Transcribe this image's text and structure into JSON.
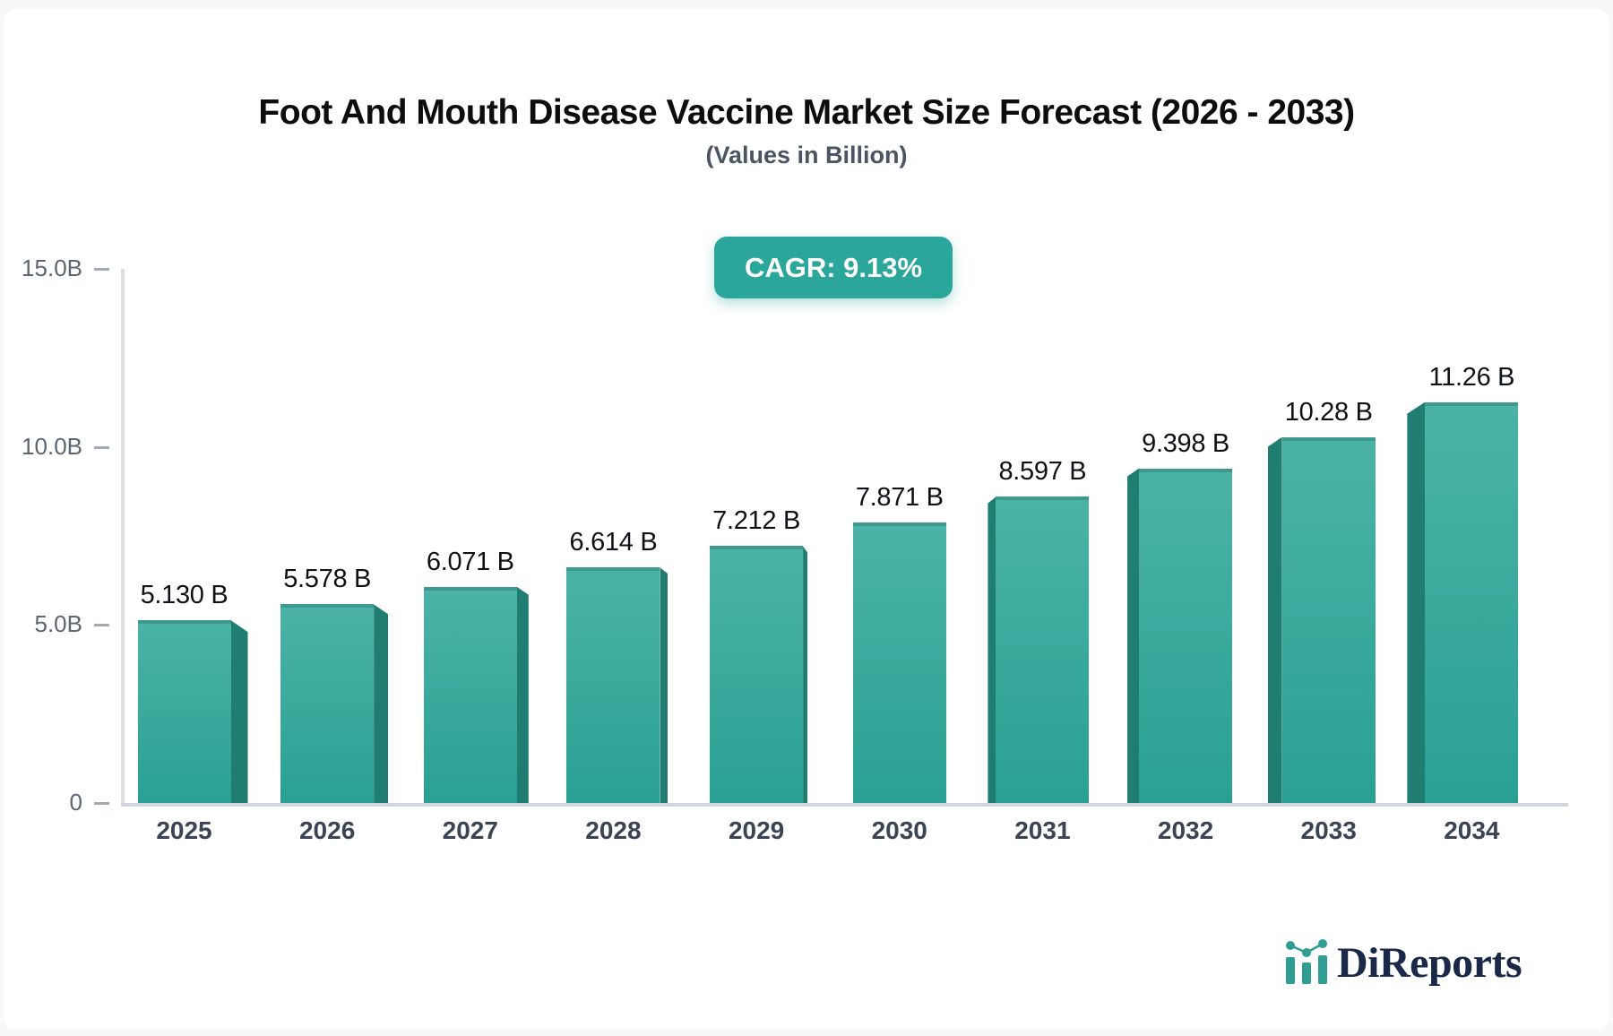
{
  "page": {
    "background": "#f6f8fa",
    "card_background": "#ffffff"
  },
  "header": {
    "title": "Foot And Mouth Disease Vaccine Market Size Forecast (2026 - 2033)",
    "subtitle": "(Values in Billion)"
  },
  "badge": {
    "label": "CAGR: 9.13%",
    "background": "#2aa79a",
    "text_color": "#ffffff"
  },
  "chart_data": {
    "type": "bar",
    "title": "Foot And Mouth Disease Vaccine Market Size Forecast (2026 - 2033)",
    "subtitle": "(Values in Billion)",
    "categories": [
      "2025",
      "2026",
      "2027",
      "2028",
      "2029",
      "2030",
      "2031",
      "2032",
      "2033",
      "2034"
    ],
    "values": [
      5.13,
      5.578,
      6.071,
      6.614,
      7.212,
      7.871,
      8.597,
      9.398,
      10.28,
      11.26
    ],
    "value_labels": [
      "5.130 B",
      "5.578 B",
      "6.071 B",
      "6.614 B",
      "7.212 B",
      "7.871 B",
      "8.597 B",
      "9.398 B",
      "10.28 B",
      "11.26 B"
    ],
    "y_ticks": [
      {
        "label": "15.0B",
        "value": 15
      },
      {
        "label": "10.0B",
        "value": 10
      },
      {
        "label": "5.0B",
        "value": 5
      },
      {
        "label": "0",
        "value": 0
      }
    ],
    "ylim": [
      0,
      15
    ],
    "grid": false,
    "legend": false,
    "colors": {
      "bar_face_top": "#4bb3a6",
      "bar_face_bottom": "#2aa094",
      "bar_side": "#1f7d71",
      "axis_line": "#dcdfe4",
      "baseline": "#d2d6dc",
      "tick_dash": "#a3aab4"
    }
  },
  "logo": {
    "text": "DiReports",
    "icon": "mini-bar-chart-logo-icon",
    "icon_color": "#2f9d92",
    "text_color": "#1a2947"
  }
}
